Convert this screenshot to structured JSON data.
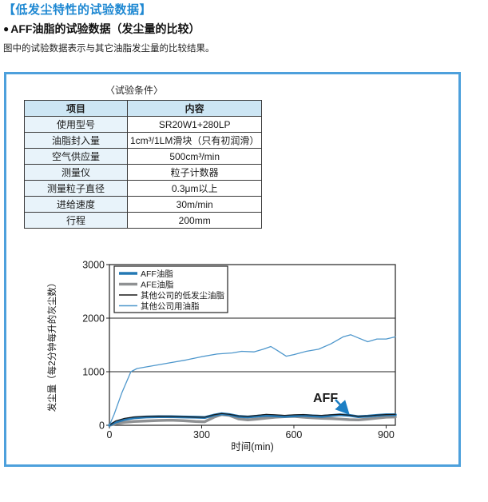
{
  "header": {
    "title": "【低发尘特性的试验数据】",
    "bullet": "●",
    "subtitle": "AFF油脂的试验数据（发尘量的比较）",
    "description": "图中的试验数据表示与其它油脂发尘量的比较结果。"
  },
  "colors": {
    "title_blue": "#1e88d2",
    "box_border": "#4da0dc",
    "table_header_bg": "#cde6f4",
    "table_item_bg": "#e8f3fa",
    "annotation_blue": "#1d7fc4"
  },
  "table": {
    "caption": "〈试验条件〉",
    "headers": [
      "项目",
      "内容"
    ],
    "rows": [
      {
        "item": "使用型号",
        "value": "SR20W1+280LP"
      },
      {
        "item": "油脂封入量",
        "value": "1cm³/1LM滑块（只有初润滑）"
      },
      {
        "item": "空气供应量",
        "value": "500cm³/min"
      },
      {
        "item": "测量仪",
        "value": "粒子计数器"
      },
      {
        "item": "测量粒子直径",
        "value": "0.3μm以上"
      },
      {
        "item": "进给速度",
        "value": "30m/min"
      },
      {
        "item": "行程",
        "value": "200mm"
      }
    ]
  },
  "chart_data": {
    "type": "line",
    "title": "",
    "xlabel": "时间(min)",
    "ylabel": "发尘量（每2分钟每升的灰尘数）",
    "xlim": [
      0,
      930
    ],
    "ylim": [
      0,
      3000
    ],
    "xticks": [
      0,
      300,
      600,
      900
    ],
    "yticks": [
      0,
      1000,
      2000,
      3000
    ],
    "grid": "horizontal",
    "legend_position": "top-left",
    "annotation": {
      "text": "AFF",
      "color": "#1d7fc4"
    },
    "series": [
      {
        "name": "AFF油脂",
        "color": "#2478b4",
        "width": 3.5,
        "x": [
          0,
          20,
          50,
          80,
          120,
          160,
          200,
          240,
          280,
          310,
          340,
          365,
          390,
          420,
          450,
          480,
          510,
          540,
          570,
          600,
          630,
          660,
          690,
          720,
          750,
          780,
          810,
          840,
          870,
          900,
          930
        ],
        "y": [
          0,
          60,
          110,
          140,
          155,
          160,
          160,
          155,
          150,
          145,
          190,
          215,
          200,
          165,
          155,
          170,
          185,
          175,
          165,
          175,
          185,
          175,
          165,
          180,
          195,
          185,
          160,
          170,
          185,
          195,
          195
        ]
      },
      {
        "name": "AFE油脂",
        "color": "#8f9193",
        "width": 3.5,
        "x": [
          0,
          20,
          50,
          80,
          120,
          160,
          200,
          240,
          280,
          310,
          340,
          365,
          390,
          420,
          450,
          480,
          510,
          540,
          570,
          600,
          630,
          660,
          690,
          720,
          750,
          780,
          810,
          840,
          870,
          900,
          930
        ],
        "y": [
          0,
          30,
          55,
          70,
          80,
          90,
          95,
          85,
          70,
          65,
          150,
          200,
          185,
          120,
          100,
          115,
          135,
          150,
          160,
          165,
          150,
          140,
          130,
          125,
          115,
          105,
          100,
          115,
          135,
          150,
          155
        ]
      },
      {
        "name": "其他公司的低发尘油脂",
        "color": "#1a1a1a",
        "width": 1.2,
        "x": [
          0,
          20,
          50,
          80,
          120,
          160,
          200,
          240,
          280,
          310,
          340,
          365,
          390,
          420,
          450,
          480,
          510,
          540,
          570,
          600,
          630,
          660,
          690,
          720,
          750,
          780,
          810,
          840,
          870,
          900,
          930
        ],
        "y": [
          0,
          80,
          130,
          155,
          165,
          170,
          165,
          160,
          150,
          150,
          195,
          220,
          205,
          175,
          165,
          185,
          205,
          195,
          185,
          195,
          200,
          190,
          185,
          195,
          205,
          190,
          165,
          175,
          190,
          200,
          205
        ]
      },
      {
        "name": "其他公司用油脂",
        "color": "#4e97cc",
        "width": 1.3,
        "x": [
          0,
          15,
          40,
          70,
          90,
          150,
          200,
          250,
          300,
          350,
          400,
          430,
          470,
          500,
          525,
          545,
          575,
          600,
          640,
          680,
          720,
          760,
          785,
          810,
          840,
          870,
          900,
          930
        ],
        "y": [
          0,
          200,
          600,
          1000,
          1060,
          1120,
          1170,
          1220,
          1280,
          1330,
          1350,
          1380,
          1370,
          1420,
          1470,
          1400,
          1290,
          1320,
          1380,
          1420,
          1520,
          1650,
          1690,
          1630,
          1560,
          1610,
          1610,
          1650
        ]
      }
    ]
  }
}
